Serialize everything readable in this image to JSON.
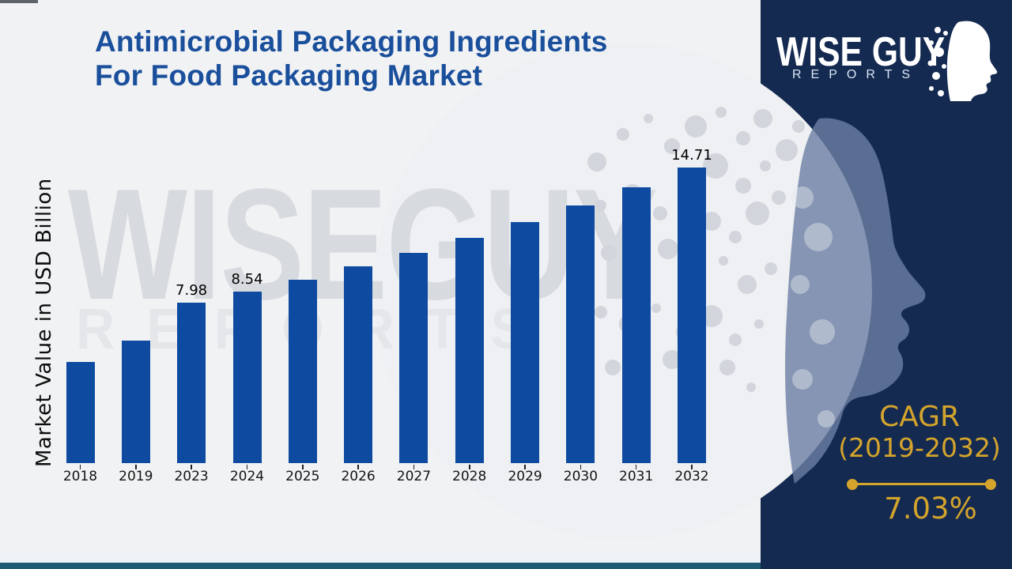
{
  "title": {
    "line1": "Antimicrobial Packaging Ingredients",
    "line2": "For Food Packaging Market"
  },
  "brand": {
    "logo_top": "WISE GUY",
    "logo_bottom": "REPORTS",
    "watermark_line1": "WISEGUY",
    "watermark_line2": "REPORTS"
  },
  "cagr": {
    "label": "CAGR",
    "range": "(2019-2032)",
    "value": "7.03%"
  },
  "chart_data": {
    "type": "bar",
    "title": "Antimicrobial Packaging Ingredients For Food Packaging Market",
    "xlabel": "",
    "ylabel": "Market Value in USD Billion",
    "categories": [
      "2018",
      "2019",
      "2023",
      "2024",
      "2025",
      "2026",
      "2027",
      "2028",
      "2029",
      "2030",
      "2031",
      "2032"
    ],
    "values": [
      5.02,
      6.08,
      7.98,
      8.54,
      9.14,
      9.78,
      10.47,
      11.2,
      11.99,
      12.83,
      13.73,
      14.71
    ],
    "data_labels": {
      "2023": "7.98",
      "2024": "8.54",
      "2032": "14.71"
    },
    "ylim": [
      0,
      16
    ],
    "grid": false,
    "legend": "none",
    "bar_color": "#0d4aa0"
  },
  "colors": {
    "background": "#f1f2f4",
    "panel_navy": "#142a50",
    "bar_blue": "#0d4aa0",
    "accent_gold": "#d4a42c",
    "title_blue": "#1a4f9c",
    "bottom_teal": "#1e5a74",
    "watermark_gray": "#d7dade"
  }
}
